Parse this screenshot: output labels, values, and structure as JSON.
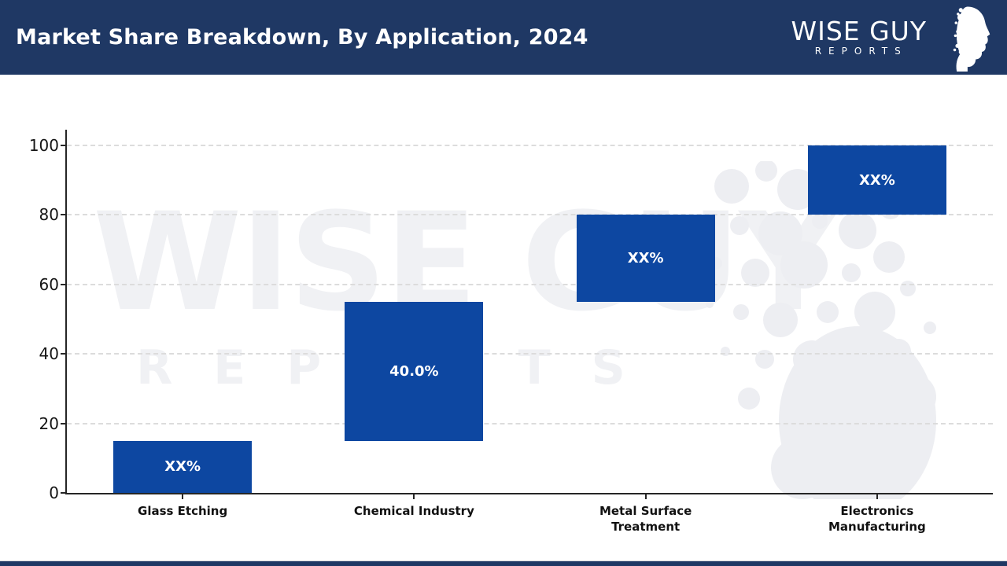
{
  "header": {
    "title": "Market Share Breakdown, By Application, 2024",
    "logo": {
      "line1": "WISE GUY",
      "line2": "REPORTS"
    }
  },
  "watermark": {
    "line1": "WISE GUY",
    "line2": "REPORTS"
  },
  "chart_data": {
    "type": "bar",
    "subtype": "waterfall",
    "title": "Market Share Breakdown, By Application, 2024",
    "categories": [
      "Glass Etching",
      "Chemical Industry",
      "Metal Surface\nTreatment",
      "Electronics\nManufacturing"
    ],
    "series": [
      {
        "name": "Market Share",
        "segments": [
          {
            "category": "Glass Etching",
            "start": 0,
            "end": 15,
            "label": "XX%"
          },
          {
            "category": "Chemical Industry",
            "start": 15,
            "end": 55,
            "label": "40.0%"
          },
          {
            "category": "Metal Surface Treatment",
            "start": 55,
            "end": 80,
            "label": "XX%"
          },
          {
            "category": "Electronics Manufacturing",
            "start": 80,
            "end": 100,
            "label": "XX%"
          }
        ]
      }
    ],
    "xlabel": "",
    "ylabel": "",
    "ylim": [
      0,
      100
    ],
    "yticks": [
      0,
      20,
      40,
      60,
      80,
      100
    ],
    "grid": "horizontal-dashed",
    "legend": "none",
    "colors": {
      "bar": "#0d47a1",
      "bar_label": "#ffffff",
      "header_bg": "#1f3864",
      "grid": "#dcdcdc",
      "axis": "#262626",
      "watermark": "#f0f1f4"
    }
  }
}
